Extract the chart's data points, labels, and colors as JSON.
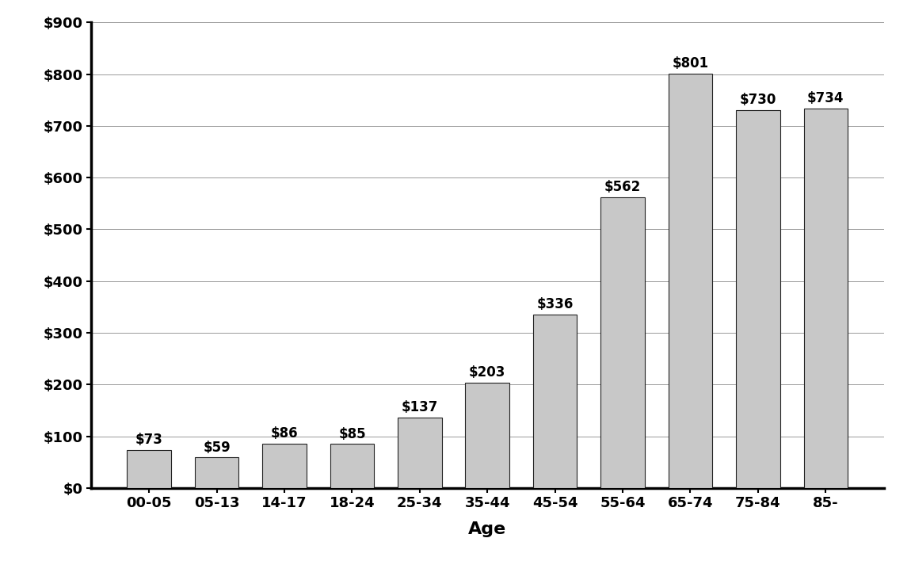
{
  "categories": [
    "00-05",
    "05-13",
    "14-17",
    "18-24",
    "25-34",
    "35-44",
    "45-54",
    "55-64",
    "65-74",
    "75-84",
    "85-"
  ],
  "values": [
    73,
    59,
    86,
    85,
    137,
    203,
    336,
    562,
    801,
    730,
    734
  ],
  "labels": [
    "$73",
    "$59",
    "$86",
    "$85",
    "$137",
    "$203",
    "$336",
    "$562",
    "$801",
    "$730",
    "$734"
  ],
  "bar_color": "#c8c8c8",
  "bar_edgecolor": "#222222",
  "spine_color": "#000000",
  "background_color": "#ffffff",
  "xlabel": "Age",
  "ylim": [
    0,
    900
  ],
  "yticks": [
    0,
    100,
    200,
    300,
    400,
    500,
    600,
    700,
    800,
    900
  ],
  "ytick_labels": [
    "$0",
    "$100",
    "$200",
    "$300",
    "$400",
    "$500",
    "$600",
    "$700",
    "$800",
    "$900"
  ],
  "axis_label_fontsize": 16,
  "tick_fontsize": 13,
  "bar_label_fontsize": 12,
  "grid_color": "#999999",
  "grid_linewidth": 0.7,
  "bar_width": 0.65,
  "spine_linewidth": 2.5
}
